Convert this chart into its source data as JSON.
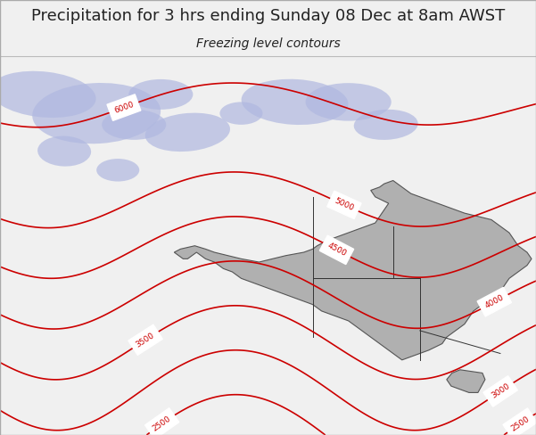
{
  "title": "Precipitation for 3 hrs ending Sunday 08 Dec at 8am AWST",
  "subtitle": "Freezing level contours",
  "title_fontsize": 13,
  "subtitle_fontsize": 10,
  "title_color": "#222222",
  "header_bg": "#f0f0f0",
  "map_bg_ocean": "#c8cce8",
  "map_bg_land": "#a0a0a0",
  "contour_color": "#cc0000",
  "contour_linewidth": 1.2,
  "contour_label_fontsize": 7,
  "fig_width": 6.01,
  "fig_height": 4.88,
  "dpi": 100,
  "border_color": "#888888",
  "state_border_color": "#333333"
}
